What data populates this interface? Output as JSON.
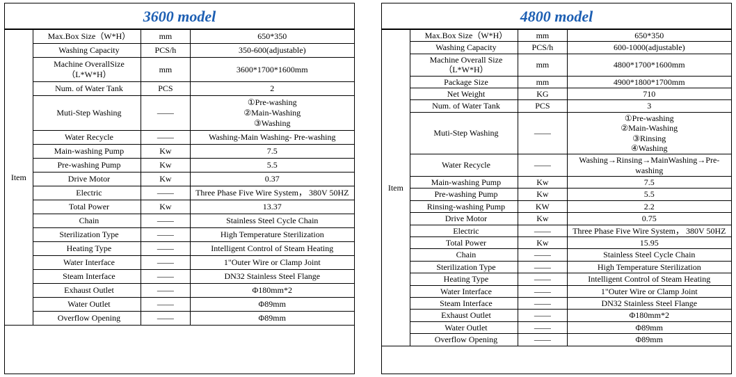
{
  "colors": {
    "title": "#1d5fb3",
    "border": "#000000",
    "bg": "#ffffff",
    "text": "#000000"
  },
  "left": {
    "title": "3600 model",
    "row_label": "Item",
    "rows": [
      {
        "param": "Max.Box Size（W*H）",
        "unit": "mm",
        "value": "650*350",
        "align": "left"
      },
      {
        "param": "Washing Capacity",
        "unit": "PCS/h",
        "value": "350-600(adjustable)",
        "align": "left"
      },
      {
        "param": "Machine OverallSize\n（L*W*H）",
        "unit": "mm",
        "value": "3600*1700*1600mm",
        "align": "left"
      },
      {
        "param": "Num. of Water Tank",
        "unit": "PCS",
        "value": "2",
        "align": "left"
      },
      {
        "param": "Muti-Step Washing",
        "unit": "——",
        "value": "①Pre-washing\n②Main-Washing\n③Washing",
        "align": "center"
      },
      {
        "param": "Water Recycle",
        "unit": "——",
        "value": "Washing-Main Washing- Pre-washing",
        "align": "center"
      },
      {
        "param": "Main-washing Pump",
        "unit": "Kw",
        "value": "7.5",
        "align": "center"
      },
      {
        "param": "Pre-washing Pump",
        "unit": "Kw",
        "value": "5.5",
        "align": "center"
      },
      {
        "param": "Drive Motor",
        "unit": "Kw",
        "value": "0.37",
        "align": "center"
      },
      {
        "param": "Electric",
        "unit": "——",
        "value": "Three Phase Five Wire System， 380V 50HZ",
        "align": "left"
      },
      {
        "param": "Total Power",
        "unit": "Kw",
        "value": "13.37",
        "align": "center"
      },
      {
        "param": "Chain",
        "unit": "——",
        "value": "Stainless Steel Cycle Chain",
        "align": "center"
      },
      {
        "param": "Sterilization Type",
        "unit": "——",
        "value": "High Temperature Sterilization",
        "align": "center"
      },
      {
        "param": "Heating Type",
        "unit": "——",
        "value": "Intelligent Control of Steam Heating",
        "align": "center"
      },
      {
        "param": "Water Interface",
        "unit": "——",
        "value": "1\"Outer Wire or Clamp Joint",
        "align": "center"
      },
      {
        "param": "Steam Interface",
        "unit": "——",
        "value": "DN32 Stainless Steel Flange",
        "align": "center"
      },
      {
        "param": "Exhaust Outlet",
        "unit": "——",
        "value": "Φ180mm*2",
        "align": "center"
      },
      {
        "param": "Water Outlet",
        "unit": "——",
        "value": "Φ89mm",
        "align": "center"
      },
      {
        "param": "Overflow Opening",
        "unit": "——",
        "value": "Φ89mm",
        "align": "center"
      }
    ]
  },
  "right": {
    "title": "4800 model",
    "row_label": "Item",
    "rows": [
      {
        "param": "Max.Box Size（W*H）",
        "unit": "mm",
        "value": "650*350",
        "align": "center"
      },
      {
        "param": "Washing Capacity",
        "unit": "PCS/h",
        "value": "600-1000(adjustable)",
        "align": "center"
      },
      {
        "param": "Machine Overall Size\n（L*W*H）",
        "unit": "mm",
        "value": "4800*1700*1600mm",
        "align": "center"
      },
      {
        "param": "Package Size",
        "unit": "mm",
        "value": "4900*1800*1700mm",
        "align": "center"
      },
      {
        "param": "Net Weight",
        "unit": "KG",
        "value": "710",
        "align": "center"
      },
      {
        "param": "Num. of Water Tank",
        "unit": "PCS",
        "value": "3",
        "align": "center"
      },
      {
        "param": "Muti-Step Washing",
        "unit": "——",
        "value": "①Pre-washing\n②Main-Washing\n③Rinsing\n④Washing",
        "align": "center"
      },
      {
        "param": "Water Recycle",
        "unit": "——",
        "value": "Washing→Rinsing→MainWashing→Pre-washing",
        "align": "center"
      },
      {
        "param": "Main-washing Pump",
        "unit": "Kw",
        "value": "7.5",
        "align": "center"
      },
      {
        "param": "Pre-washing Pump",
        "unit": "Kw",
        "value": "5.5",
        "align": "center"
      },
      {
        "param": "Rinsing-washing Pump",
        "unit": "KW",
        "value": "2.2",
        "align": "center"
      },
      {
        "param": "Drive Motor",
        "unit": "Kw",
        "value": "0.75",
        "align": "center"
      },
      {
        "param": "Electric",
        "unit": "——",
        "value": "Three Phase Five Wire System， 380V 50HZ",
        "align": "center"
      },
      {
        "param": "Total Power",
        "unit": "Kw",
        "value": "15.95",
        "align": "center"
      },
      {
        "param": "Chain",
        "unit": "——",
        "value": "Stainless Steel Cycle Chain",
        "align": "center"
      },
      {
        "param": "Sterilization Type",
        "unit": "——",
        "value": "High Temperature Sterilization",
        "align": "center"
      },
      {
        "param": "Heating Type",
        "unit": "——",
        "value": "Intelligent Control of Steam Heating",
        "align": "center"
      },
      {
        "param": "Water Interface",
        "unit": "——",
        "value": "1\"Outer Wire or Clamp Joint",
        "align": "center"
      },
      {
        "param": "Steam Interface",
        "unit": "——",
        "value": "DN32 Stainless Steel Flange",
        "align": "center"
      },
      {
        "param": "Exhaust Outlet",
        "unit": "——",
        "value": "Φ180mm*2",
        "align": "center"
      },
      {
        "param": "Water Outlet",
        "unit": "——",
        "value": "Φ89mm",
        "align": "center"
      },
      {
        "param": "Overflow Opening",
        "unit": "——",
        "value": "Φ89mm",
        "align": "center"
      }
    ]
  }
}
